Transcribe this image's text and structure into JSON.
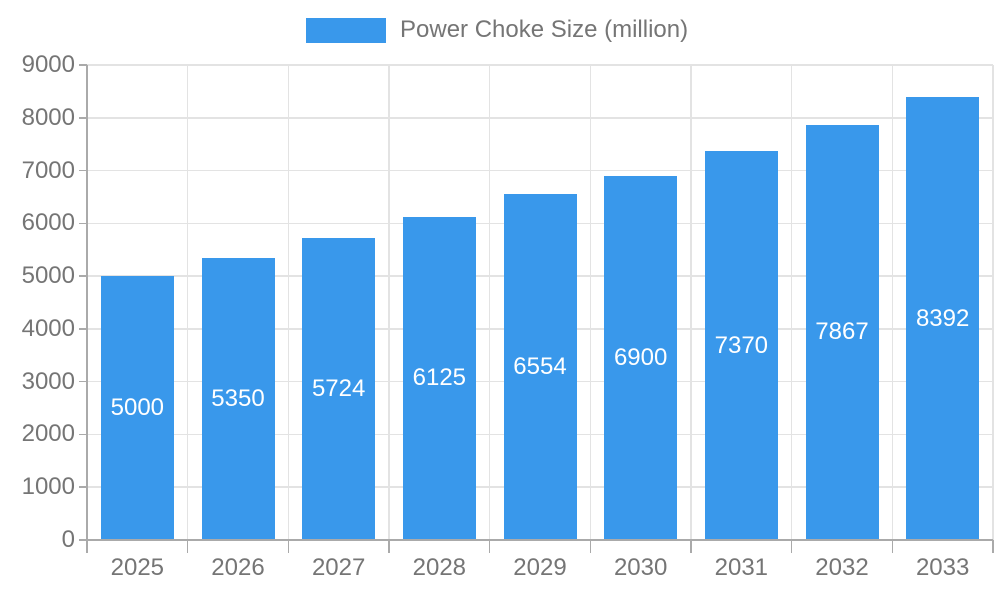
{
  "legend": {
    "label": "Power Choke Size (million)"
  },
  "colors": {
    "bar": "#3998EB",
    "grid": "#e3e3e3",
    "axis": "#aaaaaa",
    "text": "#757575",
    "value_label": "#ffffff",
    "background": "#ffffff"
  },
  "chart_data": {
    "type": "bar",
    "categories": [
      "2025",
      "2026",
      "2027",
      "2028",
      "2029",
      "2030",
      "2031",
      "2032",
      "2033"
    ],
    "values": [
      5000,
      5350,
      5724,
      6125,
      6554,
      6900,
      7370,
      7867,
      8392
    ],
    "title": "Power Choke Size (million)",
    "xlabel": "",
    "ylabel": "",
    "ylim": [
      0,
      9000
    ],
    "ytick_step": 1000,
    "grid": true,
    "legend_position": "top",
    "value_labels": "inside-center"
  }
}
